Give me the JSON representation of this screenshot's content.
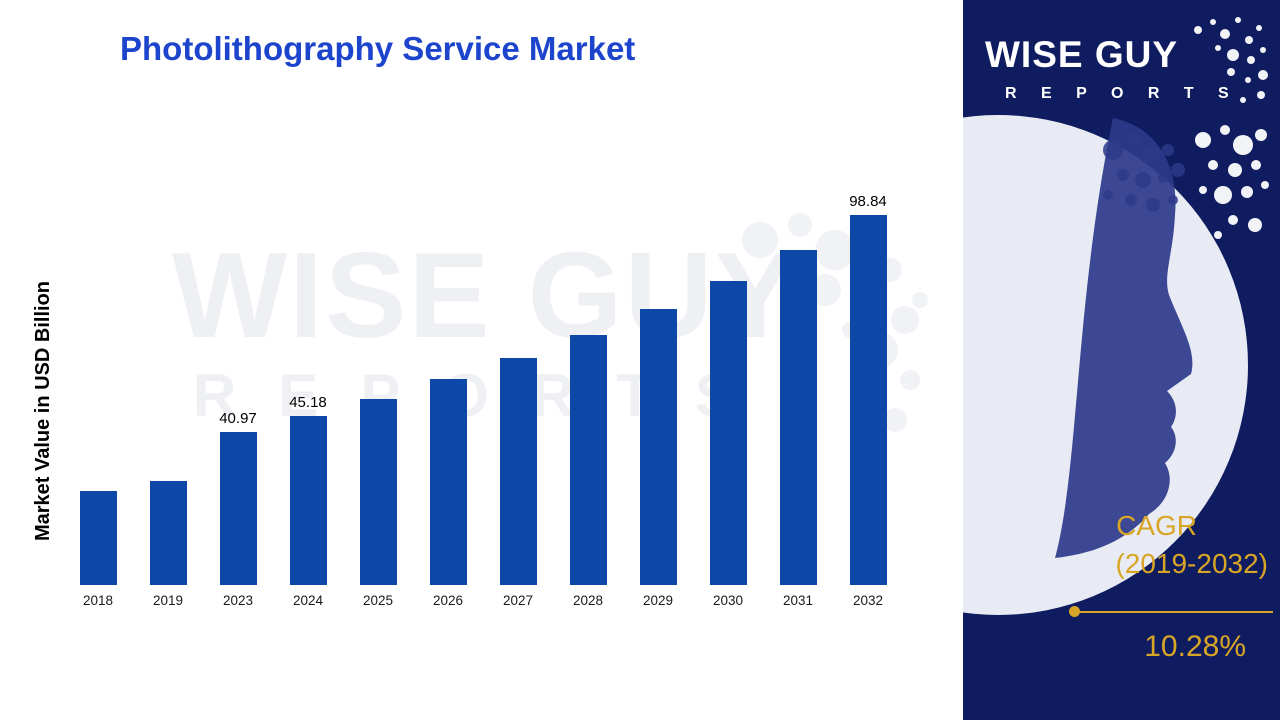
{
  "title": "Photolithography Service Market",
  "y_axis_label": "Market Value in USD Billion",
  "watermark": {
    "line1": "WISE GUY",
    "line2": "REPORTS"
  },
  "logo": {
    "line1": "WISE GUY",
    "line2": "R E P O R T S"
  },
  "cagr": {
    "label": "CAGR",
    "range": "(2019-2032)",
    "value": "10.28%"
  },
  "colors": {
    "bar": "#0d47a8",
    "title": "#1c44cc",
    "panel_background": "#0f1c60",
    "accent_gold": "#d9a526"
  },
  "chart_data": {
    "type": "bar",
    "title": "Photolithography Service Market",
    "xlabel": "",
    "ylabel": "Market Value in USD Billion",
    "categories": [
      "2018",
      "2019",
      "2023",
      "2024",
      "2025",
      "2026",
      "2027",
      "2028",
      "2029",
      "2030",
      "2031",
      "2032"
    ],
    "values": [
      25.13,
      27.71,
      40.97,
      45.18,
      49.82,
      54.94,
      60.59,
      66.82,
      73.69,
      81.27,
      89.62,
      98.84
    ],
    "value_labels": [
      "",
      "",
      "40.97",
      "45.18",
      "",
      "",
      "",
      "",
      "",
      "",
      "",
      "98.84"
    ],
    "ylim": [
      0,
      110
    ],
    "grid": false,
    "legend": "none",
    "cagr_percent": 10.28,
    "cagr_period": "2019-2032"
  }
}
